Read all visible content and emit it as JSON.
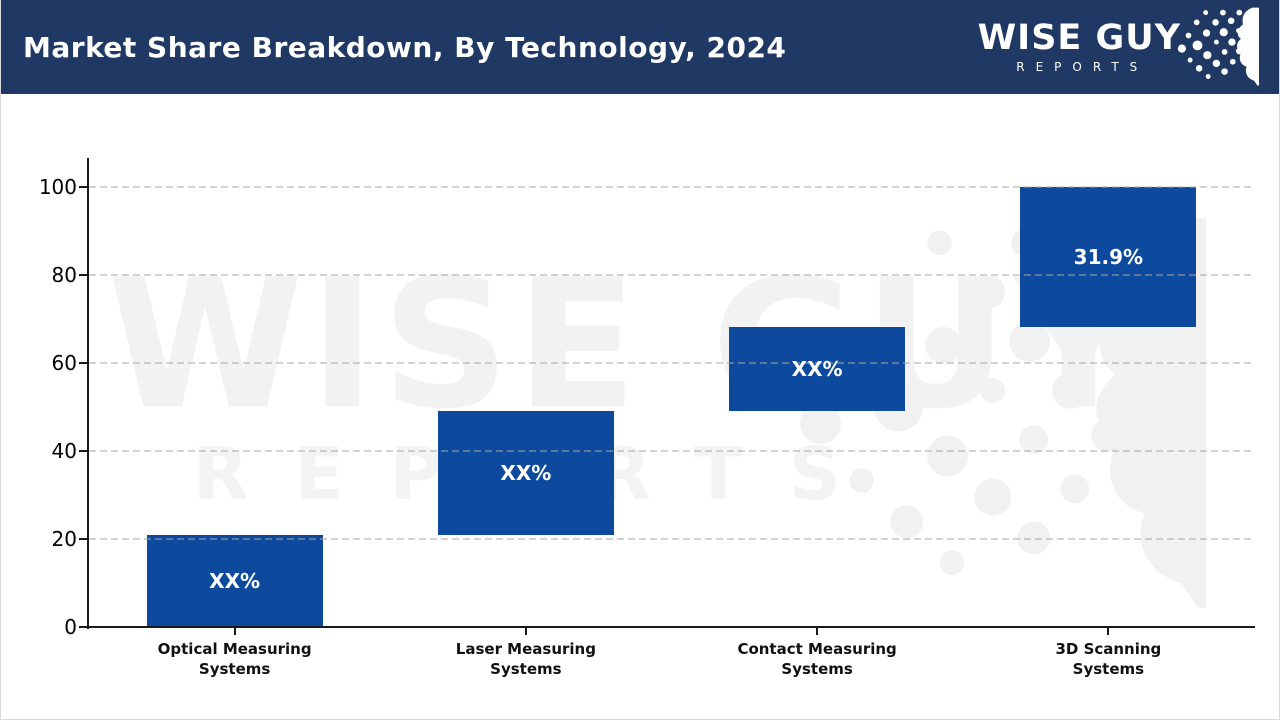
{
  "header": {
    "background_color": "#1f3864",
    "title": "Market Share Breakdown, By Technology, 2024",
    "logo": {
      "line1": "WISE GUY",
      "line2": "REPORTS"
    }
  },
  "watermark": {
    "line1": "WISE GUY",
    "line2": "REPORTS"
  },
  "chart_data": {
    "type": "bar",
    "subtype": "waterfall",
    "title": "Market Share Breakdown, By Technology, 2024",
    "categories": [
      {
        "line1": "Optical Measuring",
        "line2": "Systems"
      },
      {
        "line1": "Laser Measuring",
        "line2": "Systems"
      },
      {
        "line1": "Contact Measuring",
        "line2": "Systems"
      },
      {
        "line1": "3D Scanning",
        "line2": "Systems"
      }
    ],
    "segments": [
      {
        "category": "Optical Measuring Systems",
        "start": 0,
        "end": 21,
        "value_label": "XX%"
      },
      {
        "category": "Laser Measuring Systems",
        "start": 21,
        "end": 49.2,
        "value_label": "XX%"
      },
      {
        "category": "Contact Measuring Systems",
        "start": 49.2,
        "end": 68.1,
        "value_label": "XX%"
      },
      {
        "category": "3D Scanning Systems",
        "start": 68.1,
        "end": 100,
        "value_label": "31.9%"
      }
    ],
    "yticks": [
      0,
      20,
      40,
      60,
      80,
      100
    ],
    "ylim": [
      0,
      106
    ],
    "xlabel": "",
    "ylabel": "",
    "grid": true,
    "gridline_style": "dashed",
    "bar_color": "#0d4a9e",
    "value_label_color": "#ffffff",
    "axis_color": "#1a1a1a"
  }
}
